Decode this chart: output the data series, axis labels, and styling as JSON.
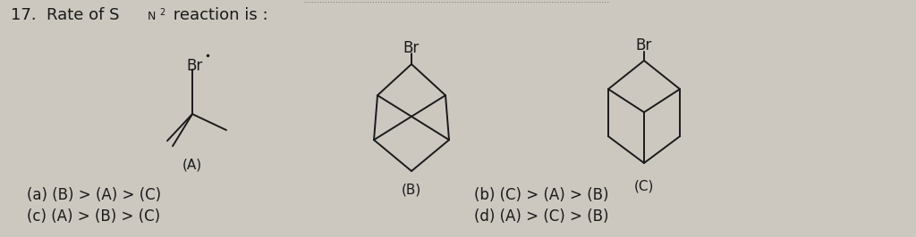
{
  "bg_color": "#ccc8c0",
  "text_color": "#1a1a1a",
  "options": [
    "(a) (B) > (A) > (C)",
    "(b) (C) > (A) > (B)",
    "(c) (A) > (B) > (C)",
    "(d) (A) > (C) > (B)"
  ],
  "fig_width": 10.24,
  "fig_height": 2.66
}
